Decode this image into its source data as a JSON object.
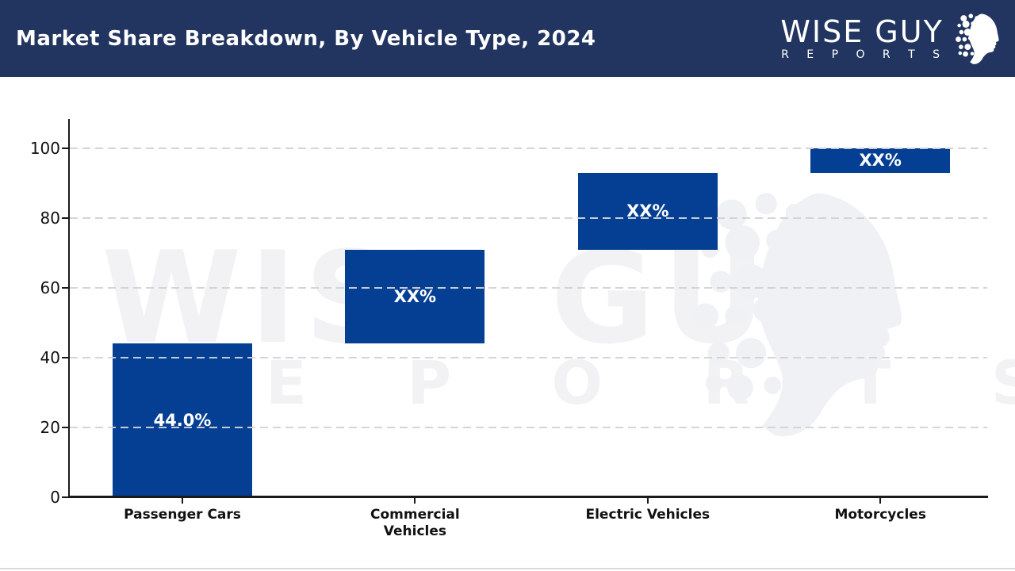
{
  "header": {
    "title": "Market Share Breakdown, By Vehicle Type, 2024",
    "bg_color": "#213560",
    "logo": {
      "wordmark": "WISE GUY",
      "subtext": "R E P O R T S"
    }
  },
  "watermark": {
    "line1": "WISE GUY",
    "line2": "R E P O R T S"
  },
  "chart_data": {
    "type": "bar",
    "variant": "waterfall",
    "title": "Market Share Breakdown, By Vehicle Type, 2024",
    "categories": [
      "Passenger Cars",
      "Commercial Vehicles",
      "Electric Vehicles",
      "Motorcycles"
    ],
    "bars": [
      {
        "category": "Passenger Cars",
        "slug": "passenger-cars",
        "start": 0,
        "end": 44,
        "value": 44,
        "label": "44.0%",
        "tick_lines": [
          "Passenger Cars"
        ]
      },
      {
        "category": "Commercial Vehicles",
        "slug": "commercial-vehicles",
        "start": 44,
        "end": 71,
        "value": 27,
        "label": "XX%",
        "tick_lines": [
          "Commercial",
          "Vehicles"
        ]
      },
      {
        "category": "Electric Vehicles",
        "slug": "electric-vehicles",
        "start": 71,
        "end": 93,
        "value": 22,
        "label": "XX%",
        "tick_lines": [
          "Electric Vehicles"
        ]
      },
      {
        "category": "Motorcycles",
        "slug": "motorcycles",
        "start": 93,
        "end": 100,
        "value": 7,
        "label": "XX%",
        "tick_lines": [
          "Motorcycles"
        ]
      }
    ],
    "y_ticks": [
      0,
      20,
      40,
      60,
      80,
      100
    ],
    "ylim": [
      0,
      108
    ],
    "xlabel": "",
    "ylabel": "",
    "grid": {
      "axis": "y",
      "style": "dashed",
      "color": "#d8d8d8",
      "drawn_above_bars": true
    },
    "legend": null,
    "bar_color": "#053f93",
    "bar_label_color": "#ffffff"
  }
}
